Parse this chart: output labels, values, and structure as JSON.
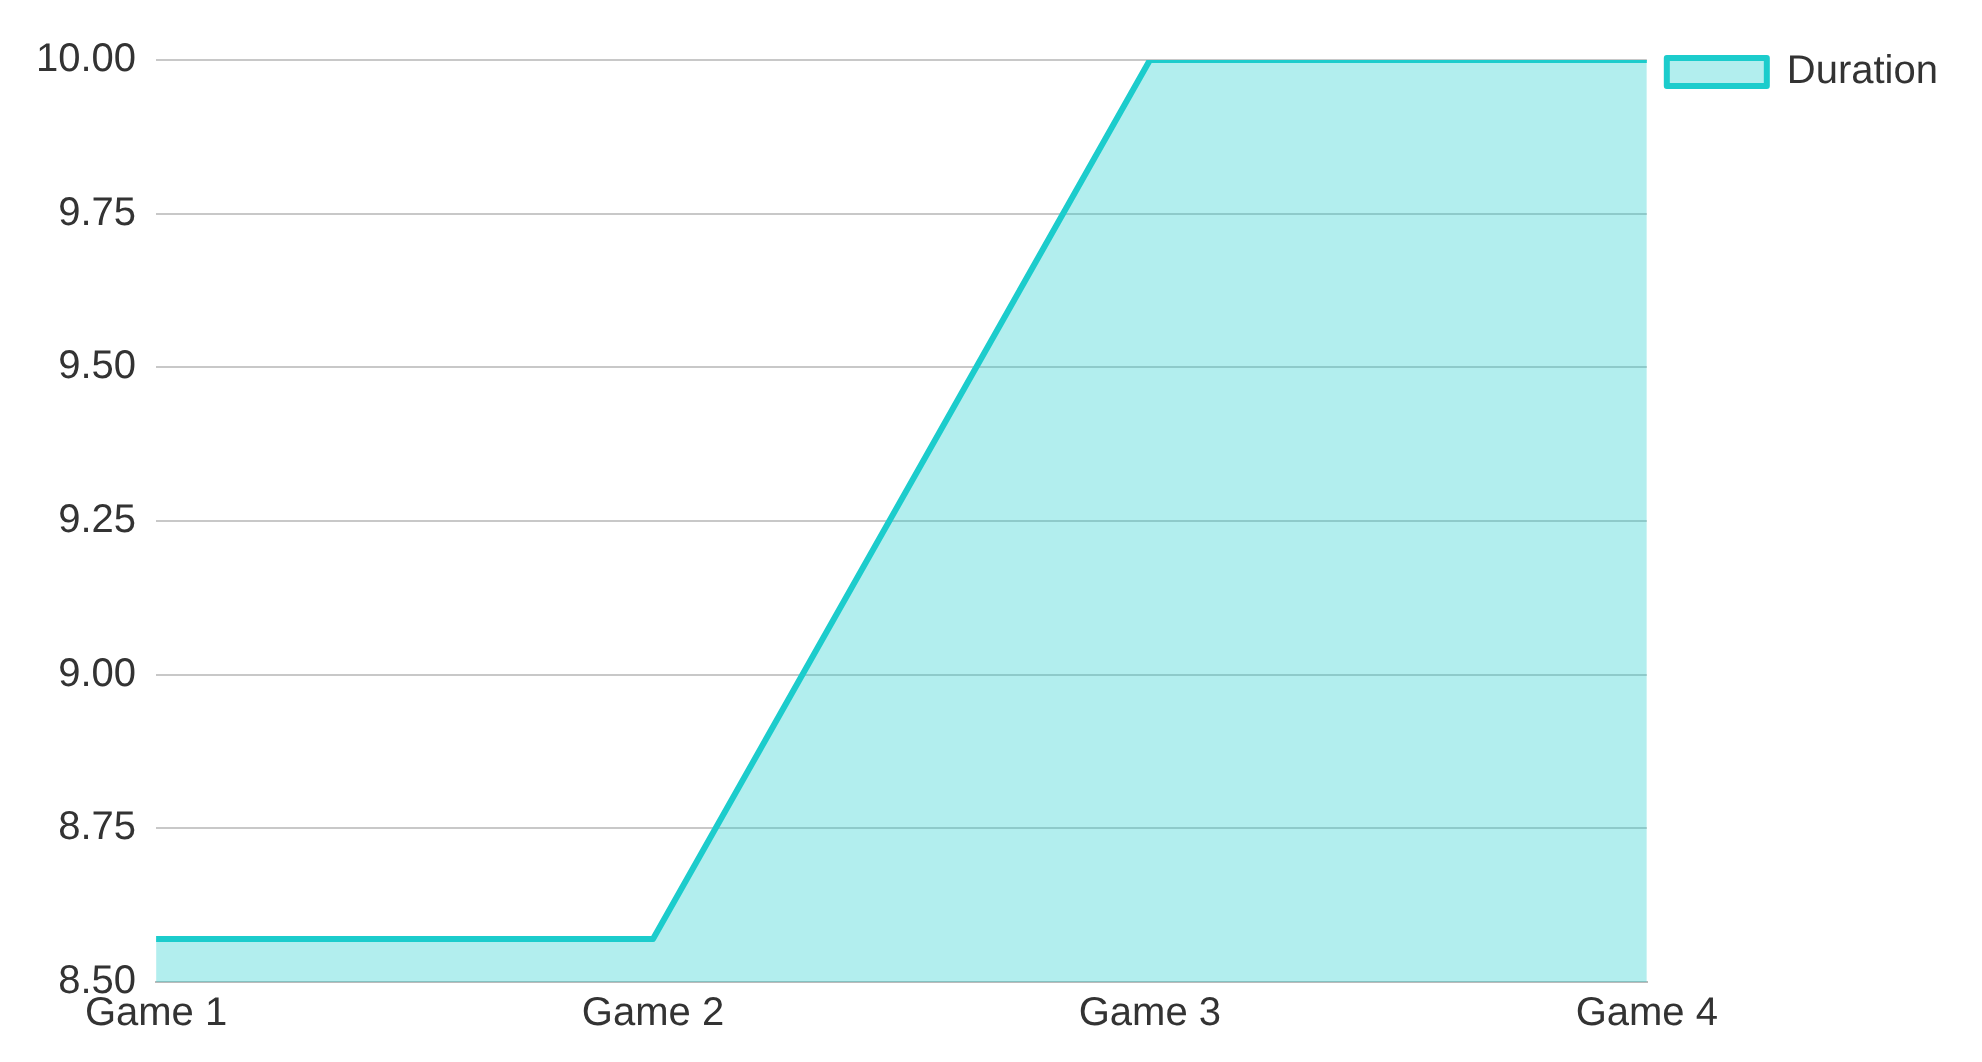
{
  "chart_data": {
    "type": "area",
    "categories": [
      "Game 1",
      "Game 2",
      "Game 3",
      "Game 4"
    ],
    "series": [
      {
        "name": "Duration",
        "color": "#1ccccc",
        "values": [
          8.57,
          8.57,
          10.0,
          10.0
        ]
      }
    ],
    "ylim": [
      8.5,
      10.0
    ],
    "yticks": [
      {
        "value": 8.5,
        "label": "8.50"
      },
      {
        "value": 8.75,
        "label": "8.75"
      },
      {
        "value": 9.0,
        "label": "9.00"
      },
      {
        "value": 9.25,
        "label": "9.25"
      },
      {
        "value": 9.5,
        "label": "9.50"
      },
      {
        "value": 9.75,
        "label": "9.75"
      },
      {
        "value": 10.0,
        "label": "10.00"
      }
    ],
    "grid": "y",
    "legend": "top right"
  }
}
